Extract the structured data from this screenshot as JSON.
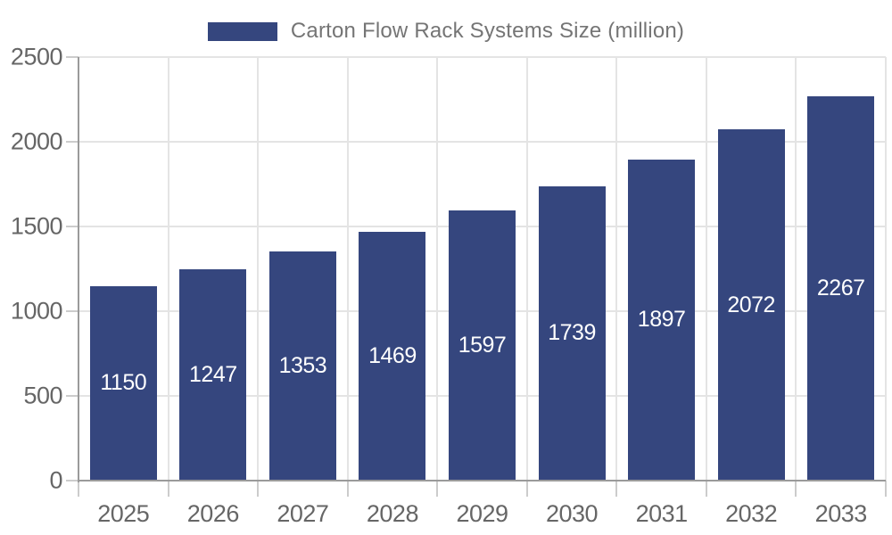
{
  "chart_data": {
    "type": "bar",
    "title": "",
    "legend_label": "Carton Flow Rack Systems Size (million)",
    "categories": [
      "2025",
      "2026",
      "2027",
      "2028",
      "2029",
      "2030",
      "2031",
      "2032",
      "2033"
    ],
    "values": [
      1150,
      1247,
      1353,
      1469,
      1597,
      1739,
      1897,
      2072,
      2267
    ],
    "xlabel": "",
    "ylabel": "",
    "ylim": [
      0,
      2500
    ],
    "yticks": [
      0,
      500,
      1000,
      1500,
      2000,
      2500
    ],
    "grid": true,
    "legend_position": "top-center",
    "bar_color": "#35467e",
    "value_label_color": "#ffffff"
  }
}
